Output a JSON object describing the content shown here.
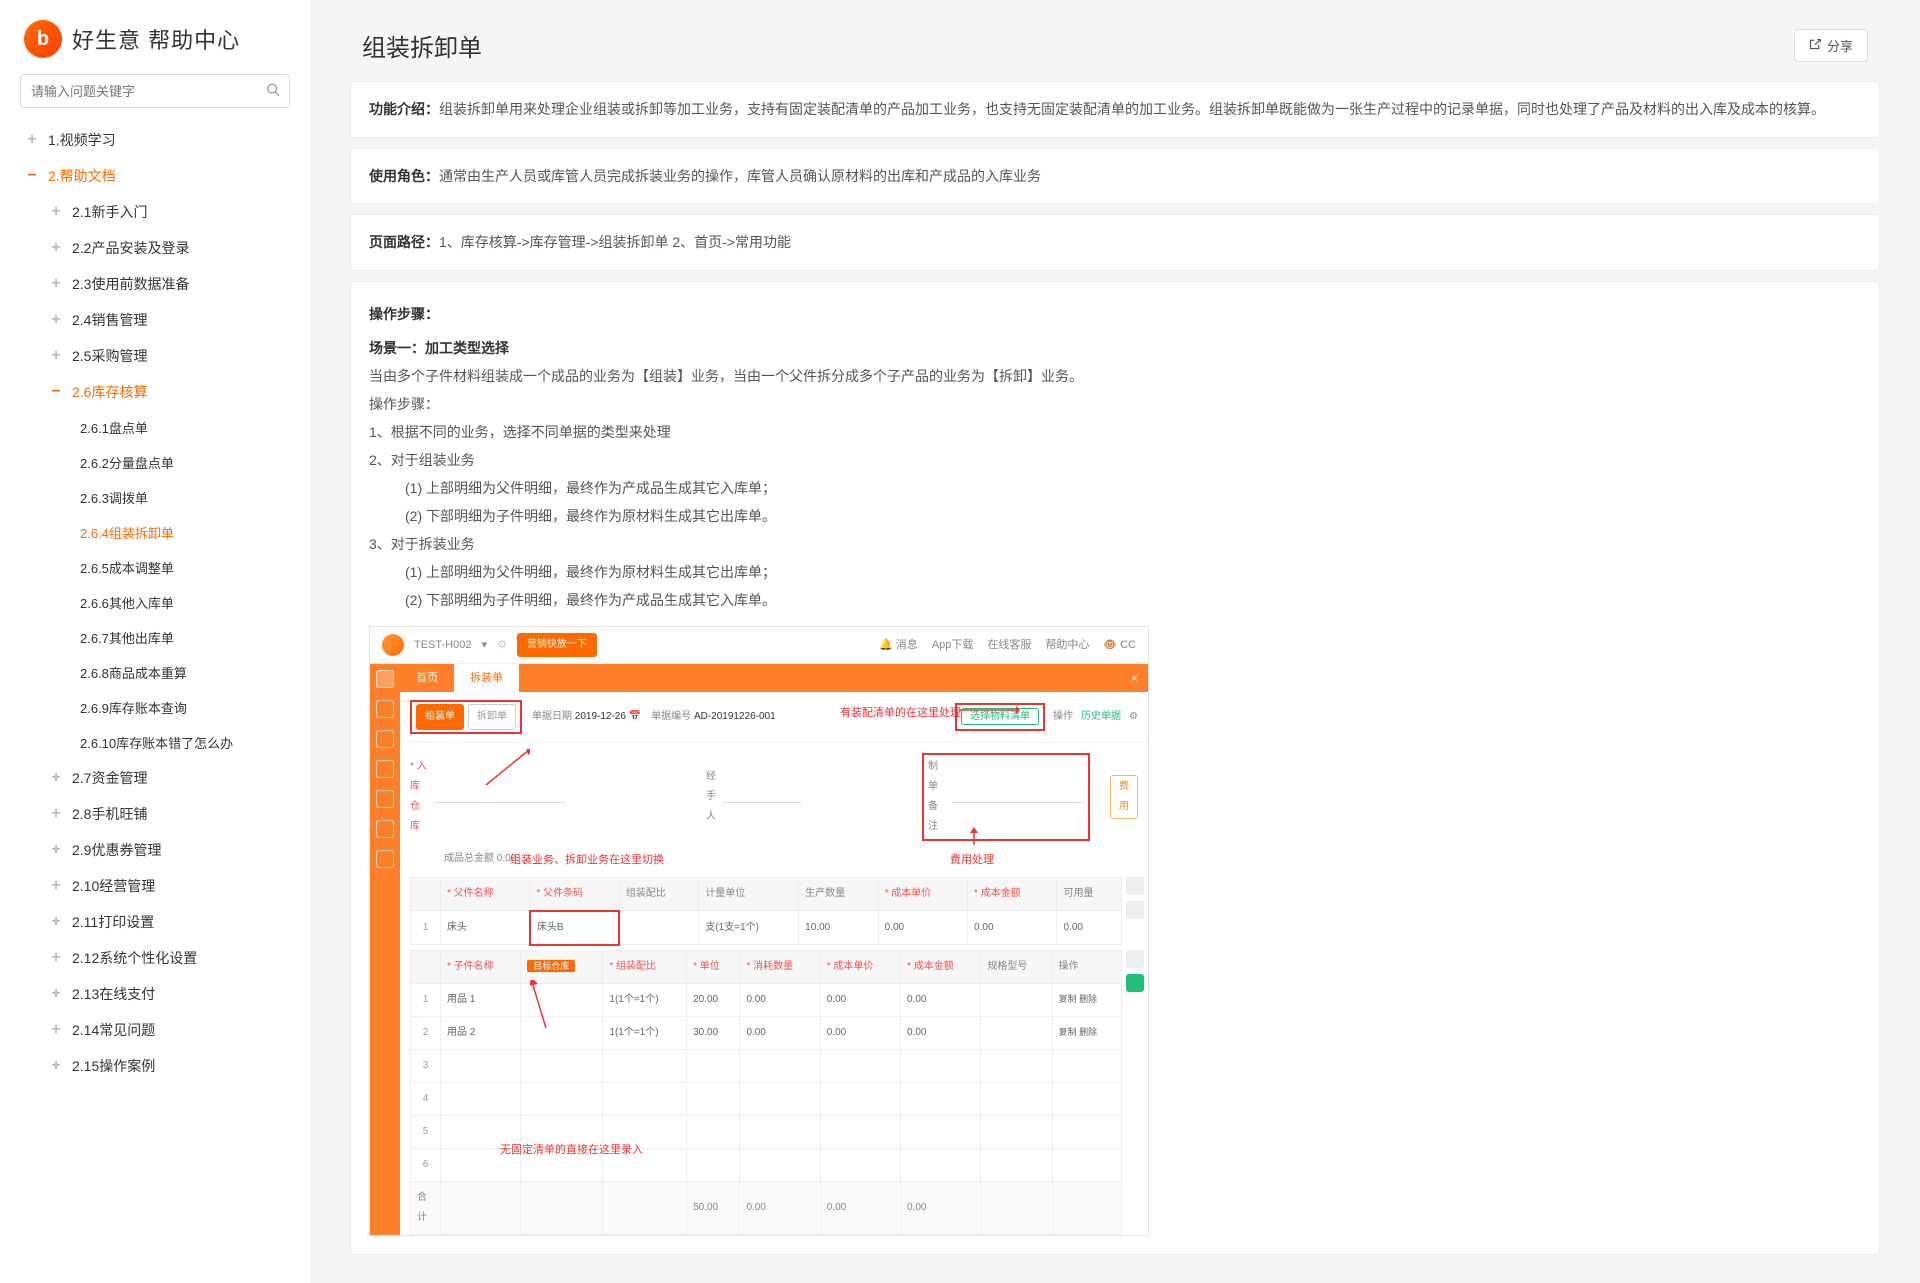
{
  "logo_text": "好生意 帮助中心",
  "search_placeholder": "请输入问题关键字",
  "share_label": "分享",
  "nav": [
    {
      "icon": "plus",
      "label": "1.视频学习",
      "lv": 1
    },
    {
      "icon": "minus",
      "label": "2.帮助文档",
      "lv": 1,
      "active": true
    },
    {
      "icon": "plus",
      "label": "2.1新手入门",
      "lv": 2
    },
    {
      "icon": "plus",
      "label": "2.2产品安装及登录",
      "lv": 2
    },
    {
      "icon": "plus",
      "label": "2.3使用前数据准备",
      "lv": 2
    },
    {
      "icon": "plus",
      "label": "2.4销售管理",
      "lv": 2
    },
    {
      "icon": "plus",
      "label": "2.5采购管理",
      "lv": 2
    },
    {
      "icon": "minus",
      "label": "2.6库存核算",
      "lv": 2,
      "active": true
    },
    {
      "icon": "",
      "label": "2.6.1盘点单",
      "lv": 3
    },
    {
      "icon": "",
      "label": "2.6.2分量盘点单",
      "lv": 3
    },
    {
      "icon": "",
      "label": "2.6.3调拨单",
      "lv": 3
    },
    {
      "icon": "",
      "label": "2.6.4组装拆卸单",
      "lv": 3,
      "active": true
    },
    {
      "icon": "",
      "label": "2.6.5成本调整单",
      "lv": 3
    },
    {
      "icon": "",
      "label": "2.6.6其他入库单",
      "lv": 3
    },
    {
      "icon": "",
      "label": "2.6.7其他出库单",
      "lv": 3
    },
    {
      "icon": "",
      "label": "2.6.8商品成本重算",
      "lv": 3
    },
    {
      "icon": "",
      "label": "2.6.9库存账本查询",
      "lv": 3
    },
    {
      "icon": "",
      "label": "2.6.10库存账本错了怎么办",
      "lv": 3
    },
    {
      "icon": "plus",
      "label": "2.7资金管理",
      "lv": 2
    },
    {
      "icon": "plus",
      "label": "2.8手机旺铺",
      "lv": 2
    },
    {
      "icon": "plus",
      "label": "2.9优惠券管理",
      "lv": 2
    },
    {
      "icon": "plus",
      "label": "2.10经营管理",
      "lv": 2
    },
    {
      "icon": "plus",
      "label": "2.11打印设置",
      "lv": 2
    },
    {
      "icon": "plus",
      "label": "2.12系统个性化设置",
      "lv": 2
    },
    {
      "icon": "plus",
      "label": "2.13在线支付",
      "lv": 2
    },
    {
      "icon": "plus",
      "label": "2.14常见问题",
      "lv": 2
    },
    {
      "icon": "plus",
      "label": "2.15操作案例",
      "lv": 2
    }
  ],
  "page_title": "组装拆卸单",
  "intro_label": "功能介绍：",
  "intro_text": "组装拆卸单用来处理企业组装或拆卸等加工业务，支持有固定装配清单的产品加工业务，也支持无固定装配清单的加工业务。组装拆卸单既能做为一张生产过程中的记录单据，同时也处理了产品及材料的出入库及成本的核算。",
  "role_label": "使用角色：",
  "role_text": "通常由生产人员或库管人员完成拆装业务的操作，库管人员确认原材料的出库和产成品的入库业务",
  "path_label": "页面路径：",
  "path_text": "1、库存核算->库存管理->组装拆卸单 2、首页->常用功能",
  "steps_label": "操作步骤：",
  "scene_label": "场景一：加工类型选择",
  "scene_desc": "当由多个子件材料组装成一个成品的业务为【组装】业务，当由一个父件拆分成多个子产品的业务为【拆卸】业务。",
  "s1": "操作步骤：",
  "l1": "1、根据不同的业务，选择不同单据的类型来处理",
  "l2": "2、对于组装业务",
  "l2a": "(1) 上部明细为父件明细，最终作为产成品生成其它入库单；",
  "l2b": "(2) 下部明细为子件明细，最终作为原材料生成其它出库单。",
  "l3": "3、对于拆装业务",
  "l3a": "(1) 上部明细为父件明细，最终作为原材料生成其它出库单；",
  "l3b": "(2) 下部明细为子件明细，最终作为产成品生成其它入库单。",
  "shot": {
    "tenant": "TEST-H002",
    "top_btn": "营销快放一下",
    "top_right": [
      "消息",
      "App下载",
      "在线客服",
      "帮助中心",
      "CC"
    ],
    "tab_home": "首页",
    "tab_active": "拆装单",
    "mode_assemble": "组装单",
    "mode_disassemble": "拆卸单",
    "date_label": "单据日期",
    "date_val": "2019-12-26",
    "no_label": "单据编号",
    "no_val": "AD-20191226-001",
    "bom_btn": "选择物料清单",
    "op_label": "操作",
    "hist_label": "历史单据",
    "ann1": "有装配清单的在这里处理",
    "ann2": "组装业务、拆卸业务在这里切换",
    "ann3": "费用处理",
    "ann4": "无固定清单的直接在这里录入",
    "inv_label": "* 入库仓库",
    "handler_label": "经手人",
    "remark_label": "制单备注",
    "fee_btn": "费用",
    "total_label": "成品总金额",
    "total_val": "0.00",
    "parent_cols": [
      "",
      "* 父件名称",
      "* 父件条码",
      "组装配比",
      "计量单位",
      "生产数量",
      "* 成本单价",
      "* 成本金额",
      "可用量"
    ],
    "parent_row": [
      "1",
      "床头",
      "床头B",
      "",
      "支(1支=1个)",
      "10.00",
      "0.00",
      "0.00",
      "0.00"
    ],
    "child_cols": [
      "",
      "* 子件名称",
      "目标仓库",
      "* 组装配比",
      "* 单位",
      "* 消耗数量",
      "* 成本单价",
      "* 成本金额",
      "规格型号",
      "操作"
    ],
    "child_rows": [
      [
        "1",
        "用品 1",
        "",
        "1(1个=1个)",
        "20.00",
        "0.00",
        "0.00",
        "0.00",
        ""
      ],
      [
        "2",
        "用品 2",
        "",
        "1(1个=1个)",
        "30.00",
        "0.00",
        "0.00",
        "0.00",
        ""
      ],
      [
        "3",
        "",
        "",
        "",
        "",
        "",
        "",
        "",
        ""
      ],
      [
        "4",
        "",
        "",
        "",
        "",
        "",
        "",
        "",
        ""
      ],
      [
        "5",
        "",
        "",
        "",
        "",
        "",
        "",
        "",
        ""
      ],
      [
        "6",
        "",
        "",
        "",
        "",
        "",
        "",
        "",
        ""
      ]
    ],
    "child_badge": "目标仓库",
    "foot": [
      "合计",
      "",
      "",
      "",
      "50.00",
      "0.00",
      "0.00",
      "0.00",
      ""
    ],
    "ops_text": "复制\n删除"
  }
}
